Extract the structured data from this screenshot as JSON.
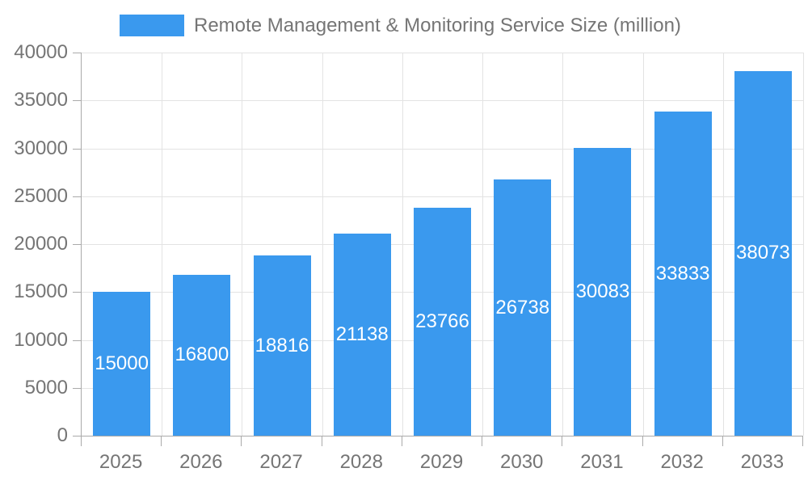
{
  "legend": {
    "label": "Remote Management & Monitoring Service Size (million)"
  },
  "chart_data": {
    "type": "bar",
    "title": "Remote Management & Monitoring Service Size (million)",
    "categories": [
      "2025",
      "2026",
      "2027",
      "2028",
      "2029",
      "2030",
      "2031",
      "2032",
      "2033"
    ],
    "values": [
      15000,
      16800,
      18816,
      21138,
      23766,
      26738,
      30083,
      33833,
      38073
    ],
    "series": [
      {
        "name": "Remote Management & Monitoring Service Size (million)",
        "values": [
          15000,
          16800,
          18816,
          21138,
          23766,
          26738,
          30083,
          33833,
          38073
        ]
      }
    ],
    "xlabel": "",
    "ylabel": "",
    "ylim": [
      0,
      40000
    ],
    "ytick_interval": 5000,
    "yticks": [
      0,
      5000,
      10000,
      15000,
      20000,
      25000,
      30000,
      35000,
      40000
    ],
    "grid": true,
    "legend_position": "top",
    "value_labels_inside_bars": true,
    "colors": {
      "bar": "#3A99EE",
      "bar_value_label": "#ffffff",
      "axis_text": "#757575",
      "gridline": "#e3e3e3",
      "axis_line": "#aaaaaa",
      "background": "#ffffff"
    }
  }
}
